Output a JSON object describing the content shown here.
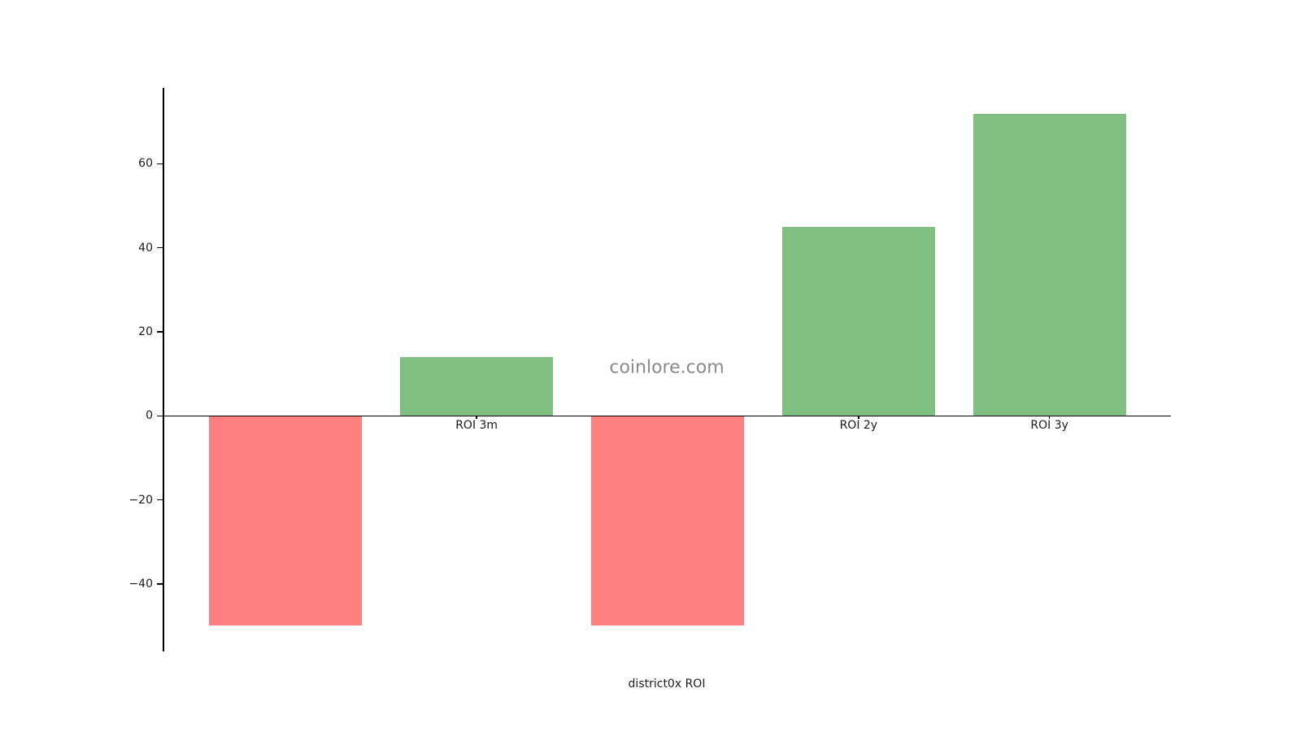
{
  "watermark": "coinlore.com",
  "chart_data": {
    "type": "bar",
    "title": "",
    "xlabel": "district0x ROI",
    "ylabel": "",
    "categories": [
      null,
      "ROI 3m",
      null,
      "ROI 2y",
      "ROI 3y"
    ],
    "values": [
      -50,
      14,
      -50,
      45,
      72
    ],
    "series_note": "single series; category labels for the two negative bars are occluded by the bars themselves",
    "xlim": [
      -0.64,
      4.64
    ],
    "ylim": [
      -56.1,
      78.1
    ],
    "bar_width_units": 0.8,
    "yticks": [
      -40,
      -20,
      0,
      20,
      40,
      60
    ],
    "ytick_labels": [
      "−40",
      "−20",
      "0",
      "20",
      "40",
      "60"
    ],
    "grid": false,
    "legend": false,
    "positive_color": "#7fbf7f",
    "negative_color": "#ff7f7f",
    "axis_color": "#000000",
    "text_color": "#1a1a1a",
    "watermark_color": "#8a8a8a",
    "background_color": "#ffffff"
  }
}
